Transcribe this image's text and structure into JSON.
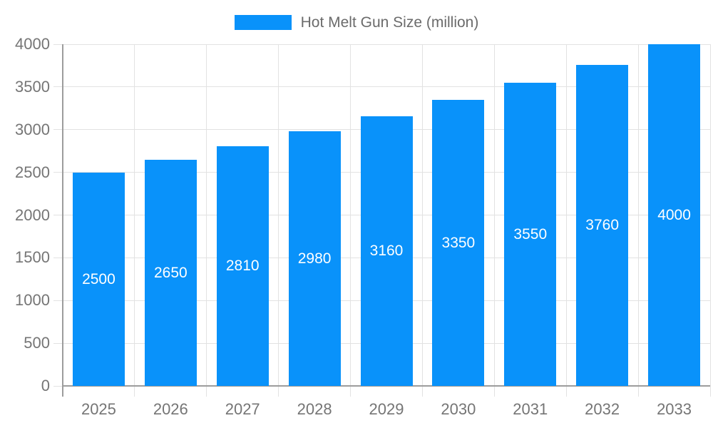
{
  "legend": {
    "label": "Hot Melt Gun Size (million)"
  },
  "colors": {
    "bar": "#0992fa",
    "grid": "#e2e2e2",
    "axis": "#9c9c9c",
    "axis_text": "#757575",
    "legend_text": "#6b6b6b",
    "bar_label": "#ffffff",
    "background": "#ffffff"
  },
  "chart_data": {
    "type": "bar",
    "title": "Hot Melt Gun Size (million)",
    "categories": [
      "2025",
      "2026",
      "2027",
      "2028",
      "2029",
      "2030",
      "2031",
      "2032",
      "2033"
    ],
    "values": [
      2500,
      2650,
      2810,
      2980,
      3160,
      3350,
      3550,
      3760,
      4000
    ],
    "xlabel": "",
    "ylabel": "",
    "ylim": [
      0,
      4000
    ],
    "ytick_step": 500,
    "grid": true,
    "legend_position": "top",
    "bar_labels_visible": true,
    "bar_label_position": "center"
  }
}
